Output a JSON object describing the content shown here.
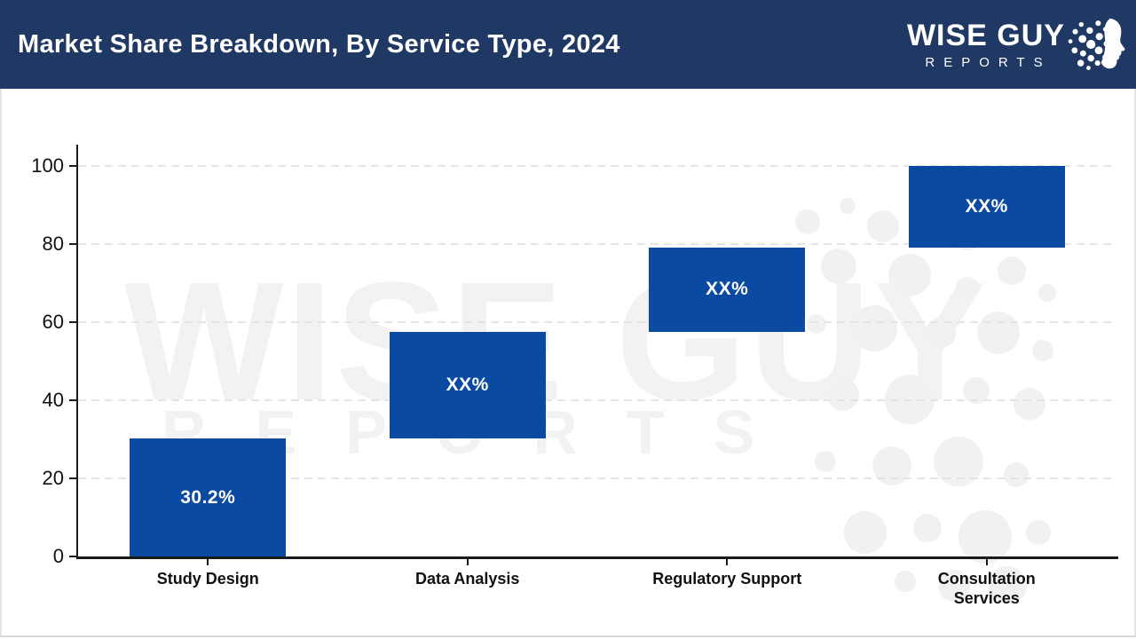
{
  "header": {
    "title": "Market Share Breakdown, By Service Type, 2024",
    "bg_color": "#1f3864",
    "logo": {
      "wordmark": "WISE GUY",
      "subtitle": "REPORTS",
      "face_icon": "dotted-head-profile"
    }
  },
  "watermark": {
    "wordmark": "WISE GUY",
    "subtitle": "REPORTS",
    "dots_icon": "dotted-head-profile",
    "color": "#f2f2f2"
  },
  "chart_data": {
    "type": "bar",
    "subtype": "waterfall",
    "title": "Market Share Breakdown, By Service Type, 2024",
    "categories": [
      "Study Design",
      "Data Analysis",
      "Regulatory Support",
      "Consultation Services"
    ],
    "series": [
      {
        "name": "Market Share",
        "segments": [
          {
            "category": "Study Design",
            "start": 0,
            "end": 30.2,
            "label": "30.2%"
          },
          {
            "category": "Data Analysis",
            "start": 30.2,
            "end": 57.5,
            "label": "XX%"
          },
          {
            "category": "Regulatory Support",
            "start": 57.5,
            "end": 79.2,
            "label": "XX%"
          },
          {
            "category": "Consultation Services",
            "start": 79.2,
            "end": 100,
            "label": "XX%"
          }
        ]
      }
    ],
    "xlabel": "",
    "ylabel": "",
    "ylim": [
      0,
      105.5
    ],
    "yticks": [
      0,
      20,
      40,
      60,
      80,
      100
    ],
    "grid": "horizontal-dashed",
    "legend": "none",
    "bar_color": "#0b4aa2",
    "bar_label_color": "#ffffff",
    "axis_color": "#1a1a1a",
    "gridline_color": "#e4e4e4",
    "tick_label_color": "#111111"
  }
}
